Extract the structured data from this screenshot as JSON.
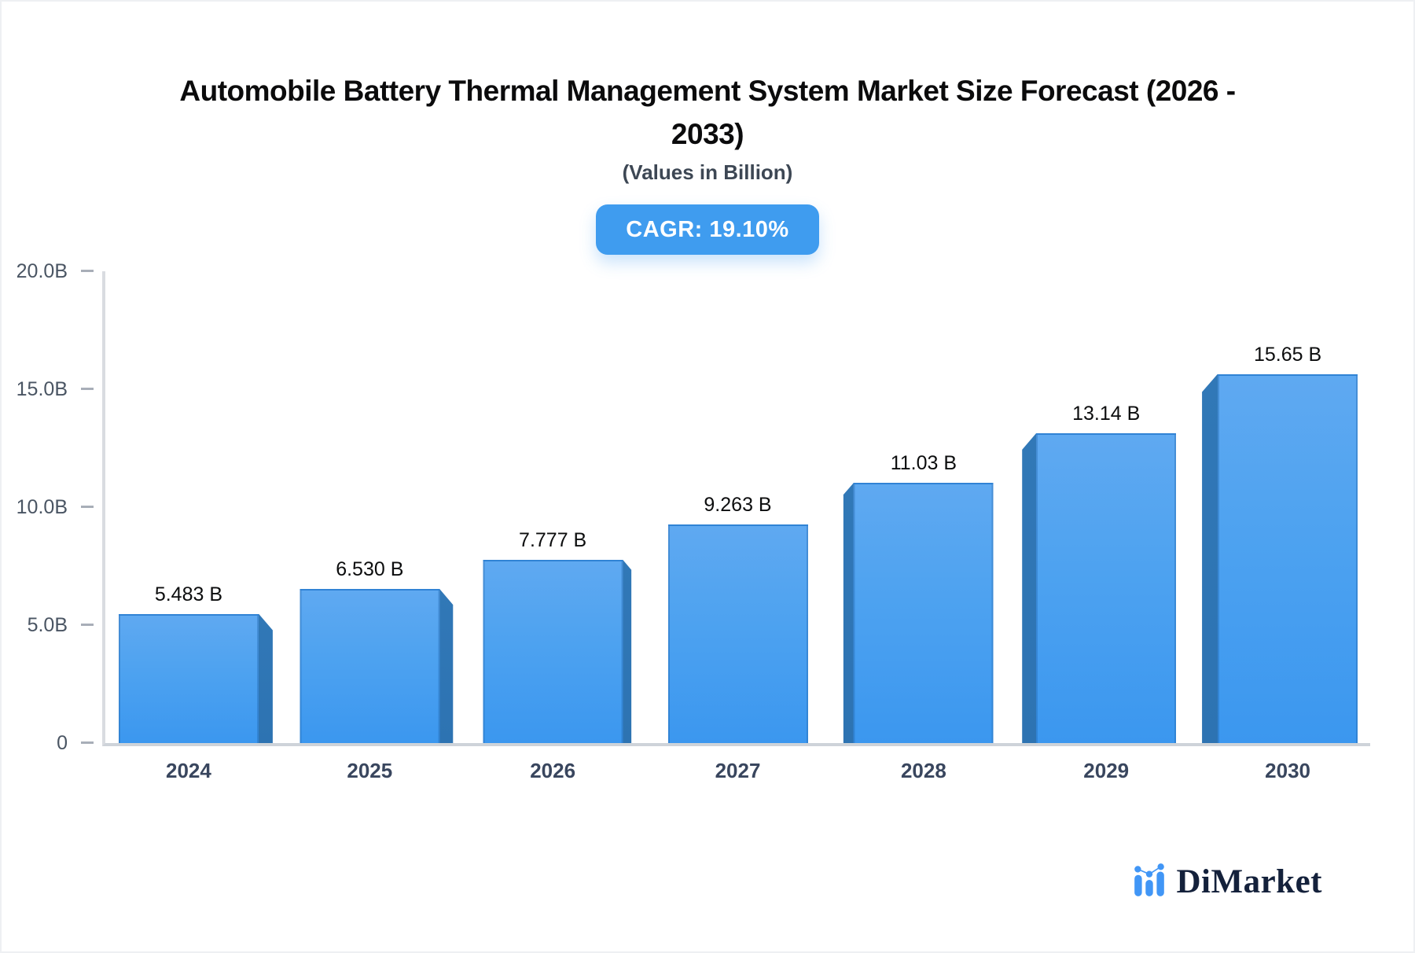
{
  "header": {
    "title_line1": "Automobile Battery Thermal Management System Market Size Forecast (2026 -",
    "title_line2": "2033)",
    "subtitle": "(Values in Billion)",
    "cagr_label": "CAGR: 19.10%"
  },
  "chart_data": {
    "type": "bar",
    "title": "Automobile Battery Thermal Management System Market Size Forecast (2026 - 2033)",
    "subtitle": "(Values in Billion)",
    "categories": [
      "2024",
      "2025",
      "2026",
      "2027",
      "2028",
      "2029",
      "2030"
    ],
    "values": [
      5.483,
      6.53,
      7.777,
      9.263,
      11.03,
      13.14,
      15.65
    ],
    "value_labels": [
      "5.483 B",
      "6.530 B",
      "7.777 B",
      "9.263 B",
      "11.03 B",
      "13.14 B",
      "15.65 B"
    ],
    "yticks": [
      "20.0B",
      "15.0B",
      "10.0B",
      "5.0B",
      "0"
    ],
    "ylim": [
      0,
      20
    ],
    "xlabel": "",
    "ylabel": "",
    "grid": false,
    "legend_position": "none",
    "bar_style": "3d",
    "colors": {
      "bar_top": "#5fa9f1",
      "bar_bottom": "#3b97ef",
      "bar_side": "#2e76b6",
      "axis_line": "#d3d7dd",
      "tick_label": "#4a5563",
      "category_label": "#39465e",
      "value_label": "#0c0d0e"
    }
  },
  "badge": {
    "background": "#3f9cef",
    "text_color": "#ffffff"
  },
  "branding": {
    "logo_text": "DiMarket",
    "logo_icon": "mini-bar-chart-icon",
    "logo_color": "#4196f6",
    "text_color": "#14213b"
  }
}
